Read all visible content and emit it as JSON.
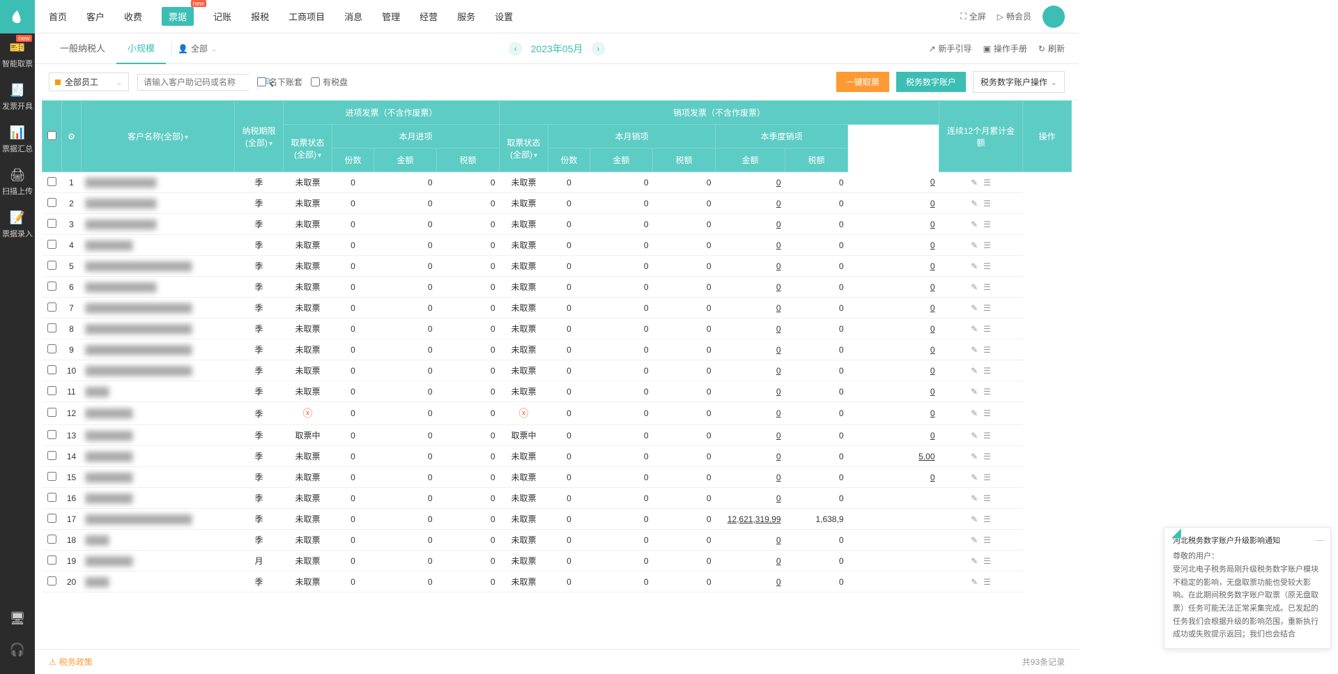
{
  "sidebar": {
    "items": [
      {
        "label": "智能取票",
        "badge": "new"
      },
      {
        "label": "发票开具"
      },
      {
        "label": "票据汇总"
      },
      {
        "label": "扫描上传"
      },
      {
        "label": "票据录入"
      }
    ]
  },
  "topnav": {
    "items": [
      "首页",
      "客户",
      "收费",
      "票据",
      "记账",
      "报税",
      "工商项目",
      "消息",
      "管理",
      "经营",
      "服务",
      "设置"
    ],
    "active_index": 3,
    "new_badge_index": 3,
    "fullscreen": "全屏",
    "member": "畅会员"
  },
  "subtabs": {
    "tabs": [
      "一般纳税人",
      "小规模"
    ],
    "active_index": 1,
    "scope": "全部",
    "date": "2023年05月",
    "guide": "新手引导",
    "manual": "操作手册",
    "refresh": "刷新"
  },
  "filter": {
    "employee": "全部员工",
    "search_placeholder": "请输入客户助记码或名称",
    "chk1": "名下账套",
    "chk2": "有税盘",
    "btn_fetch": "一键取票",
    "btn_digital": "税务数字账户",
    "btn_ops": "税务数字账户操作"
  },
  "table": {
    "header": {
      "customer": "客户名称(全部)",
      "period": "纳税期限(全部)",
      "in_group": "进项发票（不含作废票）",
      "out_group": "销项发票（不含作废票）",
      "status": "取票状态(全部)",
      "month": "本月进项",
      "month_out": "本月销项",
      "quarter_out": "本季度销项",
      "count": "份数",
      "amount": "金额",
      "tax": "税额",
      "cum12": "连续12个月累计金额",
      "ops": "操作"
    },
    "rows": [
      {
        "n": 1,
        "name": "████████████",
        "period": "季",
        "in_s": "未取票",
        "in_c": 0,
        "in_a": "0",
        "in_t": "0",
        "out_s": "未取票",
        "out_c": 0,
        "out_ma": "0",
        "out_mt": "0",
        "out_qa": "0",
        "out_qt": "0",
        "cum": "0"
      },
      {
        "n": 2,
        "name": "████████████",
        "period": "季",
        "in_s": "未取票",
        "in_c": 0,
        "in_a": "0",
        "in_t": "0",
        "out_s": "未取票",
        "out_c": 0,
        "out_ma": "0",
        "out_mt": "0",
        "out_qa": "0",
        "out_qt": "0",
        "cum": "0"
      },
      {
        "n": 3,
        "name": "████████████",
        "period": "季",
        "in_s": "未取票",
        "in_c": 0,
        "in_a": "0",
        "in_t": "0",
        "out_s": "未取票",
        "out_c": 0,
        "out_ma": "0",
        "out_mt": "0",
        "out_qa": "0",
        "out_qt": "0",
        "cum": "0"
      },
      {
        "n": 4,
        "name": "████████",
        "period": "季",
        "in_s": "未取票",
        "in_c": 0,
        "in_a": "0",
        "in_t": "0",
        "out_s": "未取票",
        "out_c": 0,
        "out_ma": "0",
        "out_mt": "0",
        "out_qa": "0",
        "out_qt": "0",
        "cum": "0"
      },
      {
        "n": 5,
        "name": "██████████████████",
        "period": "季",
        "in_s": "未取票",
        "in_c": 0,
        "in_a": "0",
        "in_t": "0",
        "out_s": "未取票",
        "out_c": 0,
        "out_ma": "0",
        "out_mt": "0",
        "out_qa": "0",
        "out_qt": "0",
        "cum": "0"
      },
      {
        "n": 6,
        "name": "████████████",
        "period": "季",
        "in_s": "未取票",
        "in_c": 0,
        "in_a": "0",
        "in_t": "0",
        "out_s": "未取票",
        "out_c": 0,
        "out_ma": "0",
        "out_mt": "0",
        "out_qa": "0",
        "out_qt": "0",
        "cum": "0"
      },
      {
        "n": 7,
        "name": "██████████████████",
        "period": "季",
        "in_s": "未取票",
        "in_c": 0,
        "in_a": "0",
        "in_t": "0",
        "out_s": "未取票",
        "out_c": 0,
        "out_ma": "0",
        "out_mt": "0",
        "out_qa": "0",
        "out_qt": "0",
        "cum": "0"
      },
      {
        "n": 8,
        "name": "██████████████████",
        "period": "季",
        "in_s": "未取票",
        "in_c": 0,
        "in_a": "0",
        "in_t": "0",
        "out_s": "未取票",
        "out_c": 0,
        "out_ma": "0",
        "out_mt": "0",
        "out_qa": "0",
        "out_qt": "0",
        "cum": "0"
      },
      {
        "n": 9,
        "name": "██████████████████",
        "period": "季",
        "in_s": "未取票",
        "in_c": 0,
        "in_a": "0",
        "in_t": "0",
        "out_s": "未取票",
        "out_c": 0,
        "out_ma": "0",
        "out_mt": "0",
        "out_qa": "0",
        "out_qt": "0",
        "cum": "0"
      },
      {
        "n": 10,
        "name": "██████████████████",
        "period": "季",
        "in_s": "未取票",
        "in_c": 0,
        "in_a": "0",
        "in_t": "0",
        "out_s": "未取票",
        "out_c": 0,
        "out_ma": "0",
        "out_mt": "0",
        "out_qa": "0",
        "out_qt": "0",
        "cum": "0"
      },
      {
        "n": 11,
        "name": "████",
        "period": "季",
        "in_s": "未取票",
        "in_c": 0,
        "in_a": "0",
        "in_t": "0",
        "out_s": "未取票",
        "out_c": 0,
        "out_ma": "0",
        "out_mt": "0",
        "out_qa": "0",
        "out_qt": "0",
        "cum": "0"
      },
      {
        "n": 12,
        "name": "████████",
        "period": "季",
        "in_s": "ERR",
        "in_c": 0,
        "in_a": "0",
        "in_t": "0",
        "out_s": "ERR",
        "out_c": 0,
        "out_ma": "0",
        "out_mt": "0",
        "out_qa": "0",
        "out_qt": "0",
        "cum": "0"
      },
      {
        "n": 13,
        "name": "████████",
        "period": "季",
        "in_s": "取票中",
        "in_c": 0,
        "in_a": "0",
        "in_t": "0",
        "out_s": "取票中",
        "out_c": 0,
        "out_ma": "0",
        "out_mt": "0",
        "out_qa": "0",
        "out_qt": "0",
        "cum": "0"
      },
      {
        "n": 14,
        "name": "████████",
        "period": "季",
        "in_s": "未取票",
        "in_c": 0,
        "in_a": "0",
        "in_t": "0",
        "out_s": "未取票",
        "out_c": 0,
        "out_ma": "0",
        "out_mt": "0",
        "out_qa": "0",
        "out_qt": "0",
        "cum": "5.00"
      },
      {
        "n": 15,
        "name": "████████",
        "period": "季",
        "in_s": "未取票",
        "in_c": 0,
        "in_a": "0",
        "in_t": "0",
        "out_s": "未取票",
        "out_c": 0,
        "out_ma": "0",
        "out_mt": "0",
        "out_qa": "0",
        "out_qt": "0",
        "cum": "0"
      },
      {
        "n": 16,
        "name": "████████",
        "period": "季",
        "in_s": "未取票",
        "in_c": 0,
        "in_a": "0",
        "in_t": "0",
        "out_s": "未取票",
        "out_c": 0,
        "out_ma": "0",
        "out_mt": "0",
        "out_qa": "0",
        "out_qt": "0",
        "cum": ""
      },
      {
        "n": 17,
        "name": "██████████████████",
        "period": "季",
        "in_s": "未取票",
        "in_c": 0,
        "in_a": "0",
        "in_t": "0",
        "out_s": "未取票",
        "out_c": 0,
        "out_ma": "0",
        "out_mt": "0",
        "out_qa": "12,621,319.99",
        "out_qt": "1,638,9",
        "cum": ""
      },
      {
        "n": 18,
        "name": "████",
        "period": "季",
        "in_s": "未取票",
        "in_c": 0,
        "in_a": "0",
        "in_t": "0",
        "out_s": "未取票",
        "out_c": 0,
        "out_ma": "0",
        "out_mt": "0",
        "out_qa": "0",
        "out_qt": "0",
        "cum": ""
      },
      {
        "n": 19,
        "name": "████████",
        "period": "月",
        "in_s": "未取票",
        "in_c": 0,
        "in_a": "0",
        "in_t": "0",
        "out_s": "未取票",
        "out_c": 0,
        "out_ma": "0",
        "out_mt": "0",
        "out_qa": "0",
        "out_qt": "0",
        "cum": ""
      },
      {
        "n": 20,
        "name": "████",
        "period": "季",
        "in_s": "未取票",
        "in_c": 0,
        "in_a": "0",
        "in_t": "0",
        "out_s": "未取票",
        "out_c": 0,
        "out_ma": "0",
        "out_mt": "0",
        "out_qa": "0",
        "out_qt": "0",
        "cum": ""
      }
    ]
  },
  "footer": {
    "policy": "税务政策",
    "total": "共93条记录"
  },
  "notif": {
    "title": "河北税务数字账户升级影响通知",
    "greeting": "尊敬的用户：",
    "body": "受河北电子税务局刚升级税务数字账户模块不稳定的影响，无盘取票功能也受较大影响。在此期间税务数字账户取票（原无盘取票）任务可能无法正常采集完成。已发起的任务我们会根据升级的影响范围，重新执行成功或失败提示返回；我们也会结合"
  },
  "colors": {
    "teal": "#3cbeb4",
    "header_bg": "#5dccc4",
    "orange": "#ff9933",
    "red": "#ff5a3c"
  }
}
